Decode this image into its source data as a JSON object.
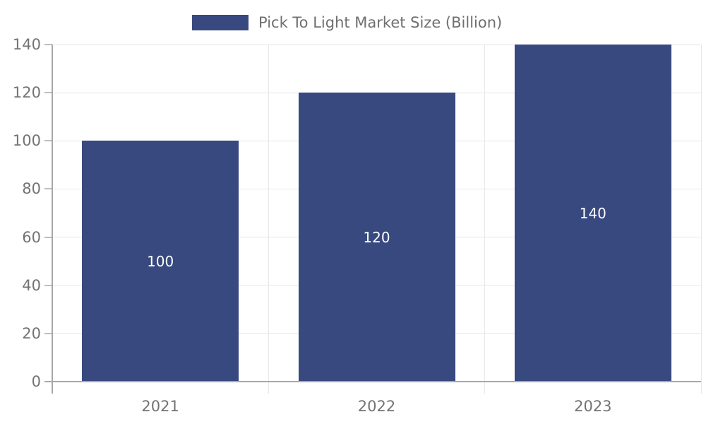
{
  "chart_data": {
    "type": "bar",
    "title": "Pick To Light Market Size (Billion)",
    "categories": [
      "2021",
      "2022",
      "2023"
    ],
    "series": [
      {
        "name": "Pick To Light Market Size (Billion)",
        "values": [
          100,
          120,
          140
        ]
      }
    ],
    "xlabel": "",
    "ylabel": "",
    "ylim": [
      0,
      140
    ],
    "yticks": [
      0,
      20,
      40,
      60,
      80,
      100,
      120,
      140
    ],
    "grid": true,
    "legend_position": "top-center",
    "bar_color": "#38497F",
    "bar_label_color": "#FFFFFF",
    "axis_text_color": "#737373",
    "grid_color": "#E7E7E7",
    "axis_line_color": "#A8A8A8",
    "tick_color": "#BEBEBE"
  }
}
